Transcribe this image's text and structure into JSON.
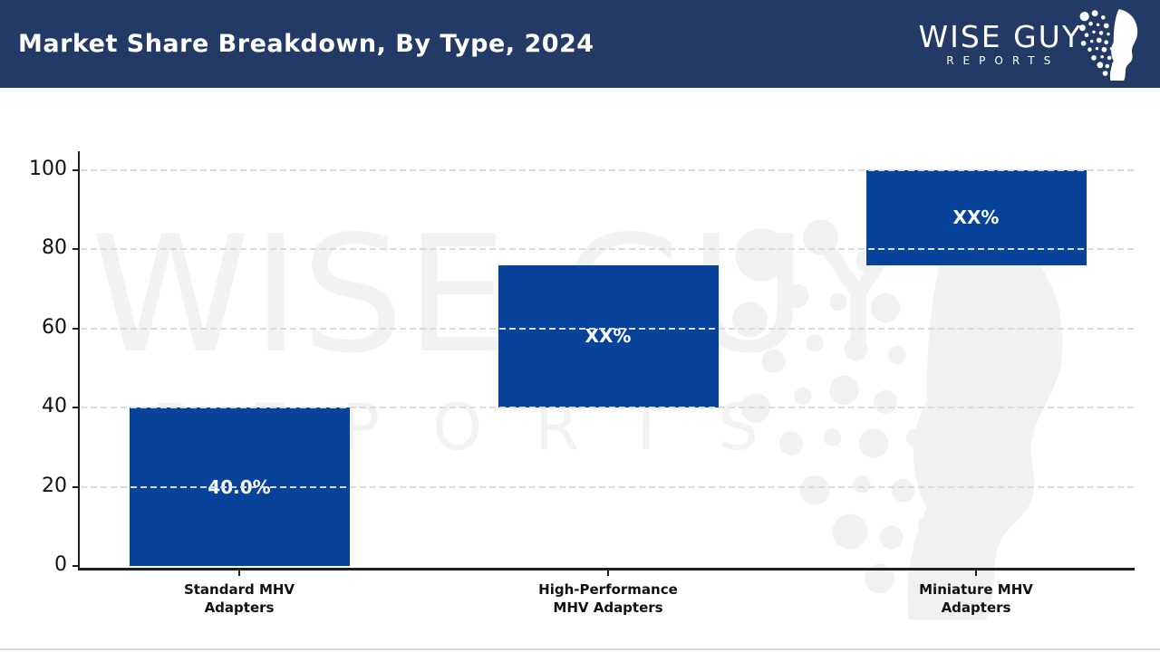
{
  "header": {
    "title": "Market Share Breakdown, By Type, 2024"
  },
  "logo": {
    "line1": "WISE GUY",
    "line2": "REPORTS"
  },
  "watermark": {
    "line1": "WISE GUY",
    "line2": "REPORTS"
  },
  "colors": {
    "header_bg": "#233a66",
    "bar": "#07439b",
    "grid": "#dcdcdc",
    "axis": "#1f1f1f",
    "bar_label_text": "#ffffff",
    "watermark": "#f2f2f2"
  },
  "chart_data": {
    "type": "bar",
    "subtype": "waterfall",
    "title": "Market Share Breakdown, By Type, 2024",
    "categories": [
      [
        "Standard MHV",
        "Adapters"
      ],
      [
        "High-Performance",
        "MHV Adapters"
      ],
      [
        "Miniature MHV",
        "Adapters"
      ]
    ],
    "segments": [
      {
        "start": 0,
        "end": 40,
        "label": "40.0%"
      },
      {
        "start": 40,
        "end": 76,
        "label": "XX%"
      },
      {
        "start": 76,
        "end": 100,
        "label": "XX%"
      }
    ],
    "ylim": [
      0,
      100
    ],
    "yticks": [
      0,
      20,
      40,
      60,
      80,
      100
    ],
    "xlabel": "",
    "ylabel": "",
    "grid": "horizontal-dashed",
    "legend": "none"
  }
}
